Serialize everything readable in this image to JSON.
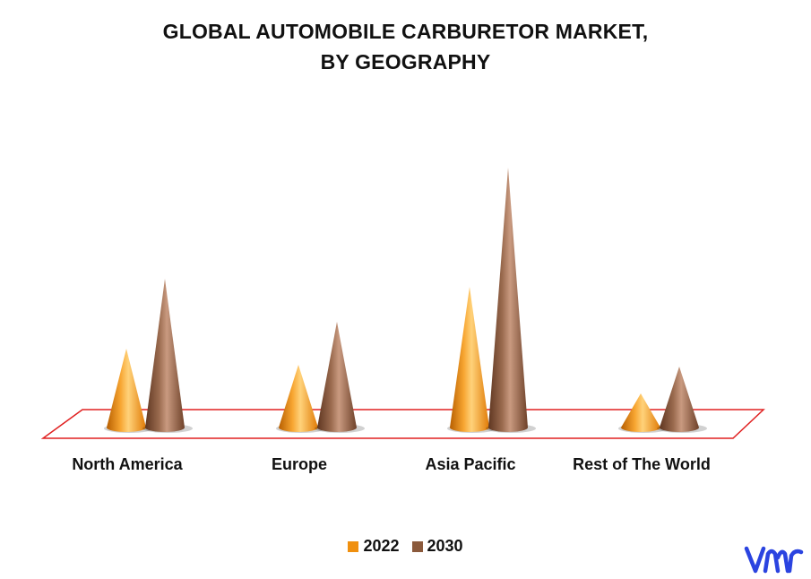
{
  "title_line1": "GLOBAL AUTOMOBILE CARBURETOR MARKET,",
  "title_line2": "BY GEOGRAPHY",
  "colors": {
    "2022": "#F0900F",
    "2030": "#8B5A3C",
    "floor": "#E02020"
  },
  "logo": {
    "text": "vmr",
    "color": "#2B44E0"
  },
  "chart_data": {
    "type": "bar",
    "shape": "cone",
    "title": "GLOBAL AUTOMOBILE CARBURETOR MARKET, BY GEOGRAPHY",
    "categories": [
      "North America",
      "Europe",
      "Asia Pacific",
      "Rest of The World"
    ],
    "series": [
      {
        "name": "2022",
        "values": [
          88,
          70,
          157,
          38
        ]
      },
      {
        "name": "2030",
        "values": [
          166,
          118,
          290,
          68
        ]
      }
    ],
    "ylim": [
      0,
      300
    ],
    "legend": "bottom",
    "grid": false
  }
}
